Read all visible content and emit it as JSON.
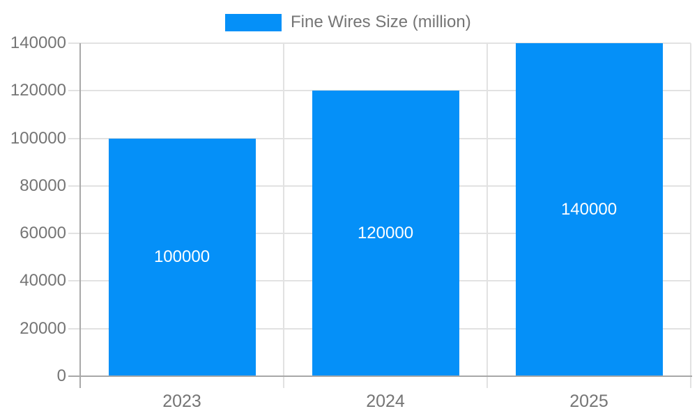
{
  "legend": {
    "label": "Fine Wires Size (million)"
  },
  "colors": {
    "bar": "#0590F8",
    "axis_line": "#A8A8A8",
    "gridline": "#E2E2E2",
    "text": "#757575",
    "bar_label": "#FFFFFF",
    "background": "#FFFFFF"
  },
  "chart_data": {
    "type": "bar",
    "title": "",
    "categories": [
      "2023",
      "2024",
      "2025"
    ],
    "values": [
      100000,
      120000,
      140000
    ],
    "series": [
      {
        "name": "Fine Wires Size (million)",
        "values": [
          100000,
          120000,
          140000
        ]
      }
    ],
    "data_labels": [
      "100000",
      "120000",
      "140000"
    ],
    "xlabel": "",
    "ylabel": "",
    "ylim": [
      0,
      140000
    ],
    "ytick_step": 20000,
    "ytick_labels": [
      "0",
      "20000",
      "40000",
      "60000",
      "80000",
      "100000",
      "120000",
      "140000"
    ],
    "grid": true,
    "legend_position": "top"
  }
}
